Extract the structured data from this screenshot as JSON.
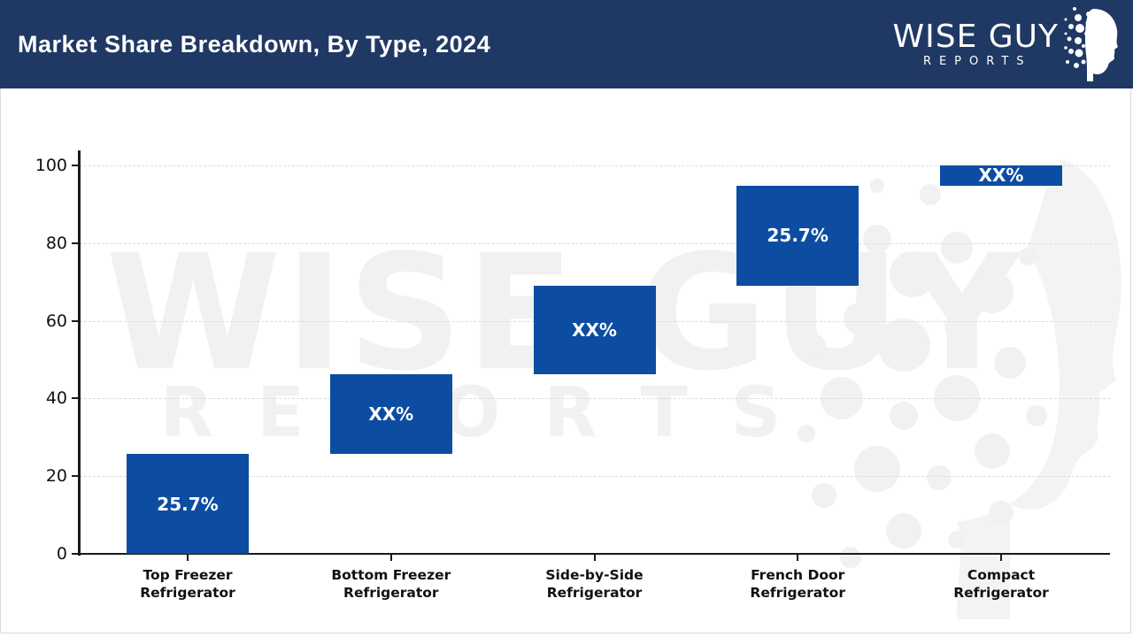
{
  "header": {
    "title": "Market Share Breakdown, By Type, 2024",
    "bg_color": "#203864",
    "logo": {
      "line1": "WISE GUY",
      "line2": "REPORTS"
    }
  },
  "watermark": {
    "line1": "WISE GUY",
    "line2": "R E P O R T S"
  },
  "chart_data": {
    "type": "bar",
    "subtype": "floating-waterfall-segments",
    "title": "Market Share Breakdown, By Type, 2024",
    "categories": [
      "Top Freezer Refrigerator",
      "Bottom Freezer Refrigerator",
      "Side-by-Side Refrigerator",
      "French Door Refrigerator",
      "Compact Refrigerator"
    ],
    "category_lines": [
      [
        "Top Freezer",
        "Refrigerator"
      ],
      [
        "Bottom Freezer",
        "Refrigerator"
      ],
      [
        "Side-by-Side",
        "Refrigerator"
      ],
      [
        "French Door",
        "Refrigerator"
      ],
      [
        "Compact",
        "Refrigerator"
      ]
    ],
    "segments": [
      {
        "start": 0,
        "end": 25.7,
        "label": "25.7%"
      },
      {
        "start": 25.7,
        "end": 46.3,
        "label": "XX%"
      },
      {
        "start": 46.3,
        "end": 69.1,
        "label": "XX%"
      },
      {
        "start": 69.1,
        "end": 94.8,
        "label": "25.7%"
      },
      {
        "start": 94.8,
        "end": 100.0,
        "label": "XX%"
      }
    ],
    "bar_color": "#0c4da2",
    "label_color": "#ffffff",
    "xlabel": "",
    "ylabel": "",
    "ylim": [
      0,
      100
    ],
    "yticks": [
      0,
      20,
      40,
      60,
      80,
      100
    ],
    "grid": "dashed-horizontal",
    "legend": "none"
  }
}
